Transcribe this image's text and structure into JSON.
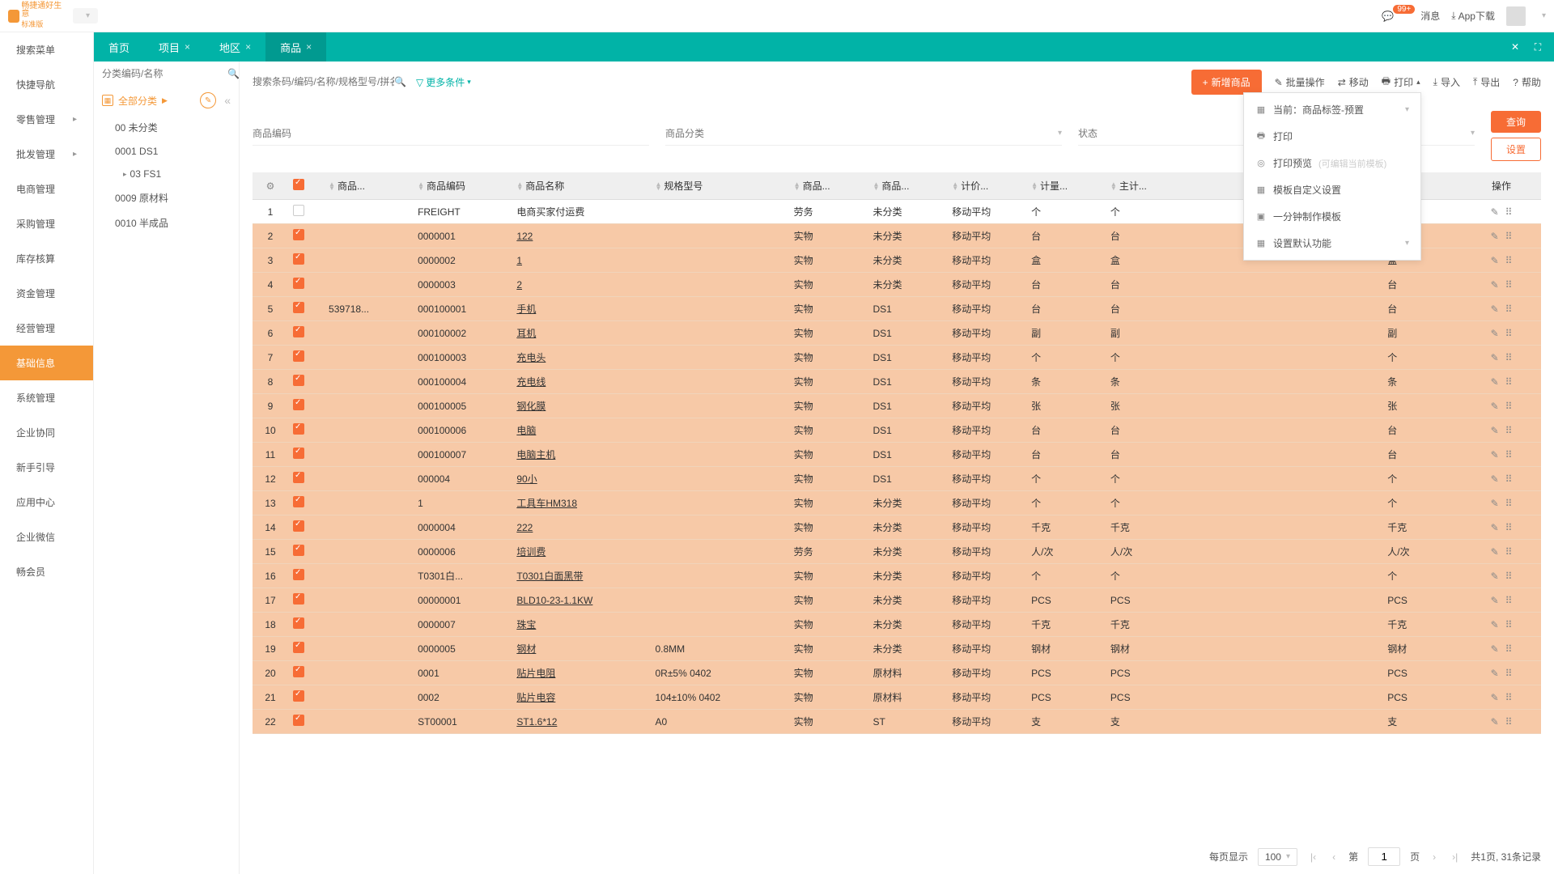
{
  "logo": {
    "top": "畅捷通好生意",
    "sub": "标准版"
  },
  "header": {
    "company_placeholder": " ",
    "msg_label": "消息",
    "msg_badge": "99+",
    "download_label": "App下载"
  },
  "nav": {
    "items": [
      {
        "label": "搜索菜单"
      },
      {
        "label": "快捷导航"
      },
      {
        "label": "零售管理",
        "caret": true
      },
      {
        "label": "批发管理",
        "caret": true
      },
      {
        "label": "电商管理"
      },
      {
        "label": "采购管理"
      },
      {
        "label": "库存核算"
      },
      {
        "label": "资金管理"
      },
      {
        "label": "经营管理"
      },
      {
        "label": "基础信息",
        "active": true
      },
      {
        "label": "系统管理"
      },
      {
        "label": "企业协同"
      },
      {
        "label": "新手引导"
      },
      {
        "label": "应用中心"
      },
      {
        "label": "企业微信"
      },
      {
        "label": "畅会员"
      }
    ]
  },
  "tabs": {
    "items": [
      {
        "label": "首页"
      },
      {
        "label": "项目",
        "close": true
      },
      {
        "label": "地区",
        "close": true
      },
      {
        "label": "商品",
        "close": true,
        "active": true
      }
    ]
  },
  "tree": {
    "search_placeholder": "分类编码/名称",
    "all_label": "全部分类",
    "items": [
      {
        "label": "00 未分类"
      },
      {
        "label": "0001 DS1"
      },
      {
        "label": "03 FS1",
        "expandable": true
      },
      {
        "label": "0009 原材料"
      },
      {
        "label": "0010 半成品"
      }
    ]
  },
  "toolbar": {
    "search_placeholder": "搜索条码/编码/名称/规格型号/拼名",
    "more_label": "更多条件",
    "add_label": "新增商品",
    "batch_label": "批量操作",
    "move_label": "移动",
    "print_label": "打印",
    "import_label": "导入",
    "export_label": "导出",
    "help_label": "帮助"
  },
  "filters": {
    "code_label": "商品编码",
    "cat_label": "商品分类",
    "status_label": "状态",
    "search_btn": "查询",
    "setting_btn": "设置"
  },
  "print_menu": {
    "current_prefix": "当前：",
    "current_value": "商品标签-预置",
    "print": "打印",
    "preview": "打印预览",
    "preview_hint": "(可编辑当前模板)",
    "custom": "模板自定义设置",
    "oneminute": "一分钟制作模板",
    "default": "设置默认功能"
  },
  "table": {
    "headers": {
      "barcode": "商品...",
      "code": "商品编码",
      "name": "商品名称",
      "spec": "规格型号",
      "type": "商品...",
      "cat": "商品...",
      "valuation": "计价...",
      "unit": "计量...",
      "mainunit": "主计...",
      "salesunit": "销售...",
      "action": "操作"
    },
    "rows": [
      {
        "n": 1,
        "cb": false,
        "barcode": "",
        "code": "FREIGHT",
        "name": "电商买家付运费",
        "spec": "",
        "type": "劳务",
        "cat": "未分类",
        "val": "移动平均",
        "unit": "个",
        "main": "个",
        "sales": ""
      },
      {
        "n": 2,
        "cb": true,
        "code": "0000001",
        "name": "122",
        "link": true,
        "type": "实物",
        "cat": "未分类",
        "val": "移动平均",
        "unit": "台",
        "main": "台",
        "sales": "台"
      },
      {
        "n": 3,
        "cb": true,
        "code": "0000002",
        "name": "1",
        "link": true,
        "type": "实物",
        "cat": "未分类",
        "val": "移动平均",
        "unit": "盒",
        "main": "盒",
        "sales": "盒"
      },
      {
        "n": 4,
        "cb": true,
        "code": "0000003",
        "name": "2",
        "link": true,
        "type": "实物",
        "cat": "未分类",
        "val": "移动平均",
        "unit": "台",
        "main": "台",
        "sales": "台"
      },
      {
        "n": 5,
        "cb": true,
        "barcode": "539718...",
        "code": "000100001",
        "name": "手机",
        "link": true,
        "type": "实物",
        "cat": "DS1",
        "val": "移动平均",
        "unit": "台",
        "main": "台",
        "sales": "台"
      },
      {
        "n": 6,
        "cb": true,
        "code": "000100002",
        "name": "耳机",
        "link": true,
        "type": "实物",
        "cat": "DS1",
        "val": "移动平均",
        "unit": "副",
        "main": "副",
        "sales": "副"
      },
      {
        "n": 7,
        "cb": true,
        "code": "000100003",
        "name": "充电头",
        "link": true,
        "type": "实物",
        "cat": "DS1",
        "val": "移动平均",
        "unit": "个",
        "main": "个",
        "sales": "个"
      },
      {
        "n": 8,
        "cb": true,
        "code": "000100004",
        "name": "充电线",
        "link": true,
        "type": "实物",
        "cat": "DS1",
        "val": "移动平均",
        "unit": "条",
        "main": "条",
        "sales": "条"
      },
      {
        "n": 9,
        "cb": true,
        "code": "000100005",
        "name": "钢化膜",
        "link": true,
        "type": "实物",
        "cat": "DS1",
        "val": "移动平均",
        "unit": "张",
        "main": "张",
        "sales": "张"
      },
      {
        "n": 10,
        "cb": true,
        "code": "000100006",
        "name": "电脑",
        "link": true,
        "type": "实物",
        "cat": "DS1",
        "val": "移动平均",
        "unit": "台",
        "main": "台",
        "sales": "台"
      },
      {
        "n": 11,
        "cb": true,
        "code": "000100007",
        "name": "电脑主机",
        "link": true,
        "type": "实物",
        "cat": "DS1",
        "val": "移动平均",
        "unit": "台",
        "main": "台",
        "sales": "台"
      },
      {
        "n": 12,
        "cb": true,
        "code": "000004",
        "name": "90小",
        "link": true,
        "type": "实物",
        "cat": "DS1",
        "val": "移动平均",
        "unit": "个",
        "main": "个",
        "sales": "个"
      },
      {
        "n": 13,
        "cb": true,
        "code": "1",
        "name": "工具车HM318",
        "link": true,
        "type": "实物",
        "cat": "未分类",
        "val": "移动平均",
        "unit": "个",
        "main": "个",
        "sales": "个"
      },
      {
        "n": 14,
        "cb": true,
        "code": "0000004",
        "name": "222",
        "link": true,
        "type": "实物",
        "cat": "未分类",
        "val": "移动平均",
        "unit": "千克",
        "main": "千克",
        "sales": "千克"
      },
      {
        "n": 15,
        "cb": true,
        "code": "0000006",
        "name": "培训费",
        "link": true,
        "type": "劳务",
        "cat": "未分类",
        "val": "移动平均",
        "unit": "人/次",
        "main": "人/次",
        "sales": "人/次"
      },
      {
        "n": 16,
        "cb": true,
        "code": "T0301白...",
        "name": "T0301白面黑带",
        "link": true,
        "type": "实物",
        "cat": "未分类",
        "val": "移动平均",
        "unit": "个",
        "main": "个",
        "sales": "个"
      },
      {
        "n": 17,
        "cb": true,
        "code": "00000001",
        "name": "BLD10-23-1.1KW",
        "link": true,
        "type": "实物",
        "cat": "未分类",
        "val": "移动平均",
        "unit": "PCS",
        "main": "PCS",
        "sales": "PCS"
      },
      {
        "n": 18,
        "cb": true,
        "code": "0000007",
        "name": "珠宝",
        "link": true,
        "type": "实物",
        "cat": "未分类",
        "val": "移动平均",
        "unit": "千克",
        "main": "千克",
        "sales": "千克"
      },
      {
        "n": 19,
        "cb": true,
        "code": "0000005",
        "name": "钢材",
        "link": true,
        "spec": "0.8MM",
        "type": "实物",
        "cat": "未分类",
        "val": "移动平均",
        "unit": "钢材",
        "main": "钢材",
        "sales": "钢材"
      },
      {
        "n": 20,
        "cb": true,
        "code": "0001",
        "name": "贴片电阻",
        "link": true,
        "spec": "0R±5% 0402",
        "type": "实物",
        "cat": "原材料",
        "val": "移动平均",
        "unit": "PCS",
        "main": "PCS",
        "sales": "PCS"
      },
      {
        "n": 21,
        "cb": true,
        "code": "0002",
        "name": "贴片电容",
        "link": true,
        "spec": "104±10% 0402",
        "type": "实物",
        "cat": "原材料",
        "val": "移动平均",
        "unit": "PCS",
        "main": "PCS",
        "sales": "PCS"
      },
      {
        "n": 22,
        "cb": true,
        "code": "ST00001",
        "name": "ST1.6*12",
        "link": true,
        "spec": "A0",
        "type": "实物",
        "cat": "ST",
        "val": "移动平均",
        "unit": "支",
        "main": "支",
        "sales": "支"
      }
    ]
  },
  "pager": {
    "per_label": "每页显示",
    "per_value": "100",
    "page_prefix": "第",
    "page_value": "1",
    "page_suffix": "页",
    "total": "共1页, 31条记录"
  }
}
